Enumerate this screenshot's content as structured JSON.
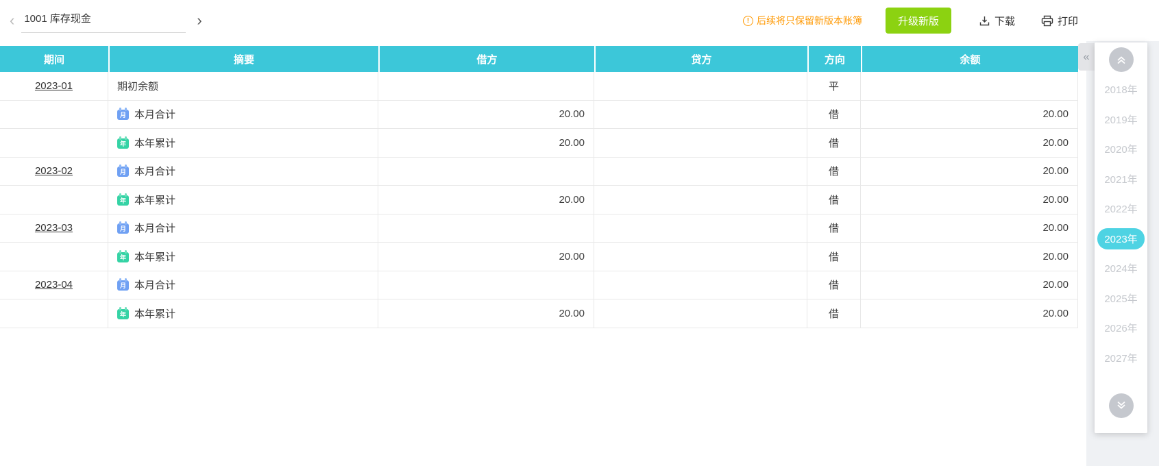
{
  "topbar": {
    "back_icon": "‹",
    "forward_icon": "›",
    "account_title": "1001 库存现金",
    "warning_mark": "!",
    "warning_text": "后续将只保留新版本账簿",
    "upgrade_button": "升级新版",
    "download_label": "下载",
    "print_label": "打印"
  },
  "table": {
    "columns": [
      "期间",
      "摘要",
      "借方",
      "贷方",
      "方向",
      "余额"
    ],
    "icon_labels": {
      "month": "月",
      "year": "年"
    },
    "rows": [
      {
        "period": "2023-01",
        "icon": "",
        "summary": "期初余额",
        "debit": "",
        "credit": "",
        "direction": "平",
        "balance": ""
      },
      {
        "period": "",
        "icon": "month",
        "summary": "本月合计",
        "debit": "20.00",
        "credit": "",
        "direction": "借",
        "balance": "20.00"
      },
      {
        "period": "",
        "icon": "year",
        "summary": "本年累计",
        "debit": "20.00",
        "credit": "",
        "direction": "借",
        "balance": "20.00"
      },
      {
        "period": "2023-02",
        "icon": "month",
        "summary": "本月合计",
        "debit": "",
        "credit": "",
        "direction": "借",
        "balance": "20.00"
      },
      {
        "period": "",
        "icon": "year",
        "summary": "本年累计",
        "debit": "20.00",
        "credit": "",
        "direction": "借",
        "balance": "20.00"
      },
      {
        "period": "2023-03",
        "icon": "month",
        "summary": "本月合计",
        "debit": "",
        "credit": "",
        "direction": "借",
        "balance": "20.00"
      },
      {
        "period": "",
        "icon": "year",
        "summary": "本年累计",
        "debit": "20.00",
        "credit": "",
        "direction": "借",
        "balance": "20.00"
      },
      {
        "period": "2023-04",
        "icon": "month",
        "summary": "本月合计",
        "debit": "",
        "credit": "",
        "direction": "借",
        "balance": "20.00"
      },
      {
        "period": "",
        "icon": "year",
        "summary": "本年累计",
        "debit": "20.00",
        "credit": "",
        "direction": "借",
        "balance": "20.00"
      }
    ]
  },
  "year_sidebar": {
    "collapse_icon": "«",
    "years": [
      "2018年",
      "2019年",
      "2020年",
      "2021年",
      "2022年",
      "2023年",
      "2024年",
      "2025年",
      "2026年",
      "2027年"
    ],
    "selected": "2023年"
  },
  "colors": {
    "header_teal": "#3cc7d9",
    "selected_year_pill": "#4ed3e3",
    "upgrade_green": "#8cd211",
    "warning_orange": "#ff9800",
    "month_icon_blue": "#6fa0f3",
    "year_icon_green": "#35d3a5"
  }
}
